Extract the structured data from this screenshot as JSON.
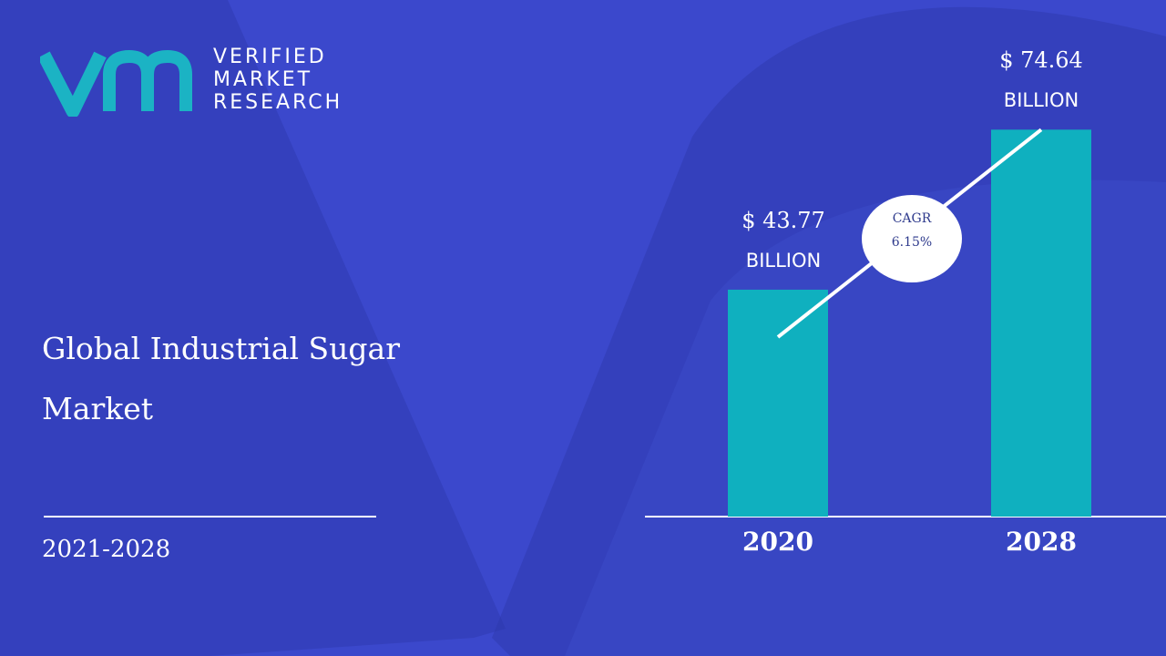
{
  "brand": {
    "line1": "VERIFIED",
    "line2": "MARKET",
    "line3": "RESEARCH",
    "logo_text": "vmr",
    "logo_color": "#1bb3c4"
  },
  "report": {
    "title": "Global Industrial Sugar Market",
    "period": "2021-2028"
  },
  "colors": {
    "background": "#3b48cc",
    "bar": "#0fb0bf",
    "text": "#ffffff"
  },
  "chart_data": {
    "type": "bar",
    "categories": [
      "2020",
      "2028"
    ],
    "values": [
      43.77,
      74.64
    ],
    "value_labels": [
      {
        "amount": "$ 43.77",
        "unit": "BILLION"
      },
      {
        "amount": "$ 74.64",
        "unit": "BILLION"
      }
    ],
    "annotation": {
      "label": "CAGR",
      "value": "6.15%"
    },
    "grid": false
  }
}
